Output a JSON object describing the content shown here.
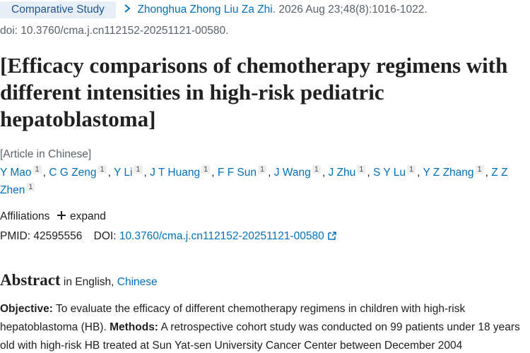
{
  "header": {
    "badge": "Comparative Study",
    "journal": "Zhonghua Zhong Liu Za Zhi",
    "citation": ". 2026 Aug 23;48(8):1016-1022.",
    "doi_line": "doi: 10.3760/cma.j.cn112152-20251121-00580."
  },
  "title": "[Efficacy comparisons of chemotherapy regimens with different intensities in high-risk pediatric hepatoblastoma]",
  "language_note": "[Article in Chinese]",
  "authors": [
    {
      "name": "Y Mao",
      "aff": "1",
      "sep": ","
    },
    {
      "name": "C G Zeng",
      "aff": "1",
      "sep": ","
    },
    {
      "name": "Y Li",
      "aff": "1",
      "sep": ","
    },
    {
      "name": "J T Huang",
      "aff": "1",
      "sep": ","
    },
    {
      "name": "F F Sun",
      "aff": "1",
      "sep": ","
    },
    {
      "name": "J Wang",
      "aff": "1",
      "sep": ","
    },
    {
      "name": "J Zhu",
      "aff": "1",
      "sep": ","
    },
    {
      "name": "S Y Lu",
      "aff": "1",
      "sep": ","
    },
    {
      "name": "Y Z Zhang",
      "aff": "1",
      "sep": ","
    },
    {
      "name": "Z Z Zhen",
      "aff": "1"
    }
  ],
  "affiliations": {
    "label": "Affiliations",
    "expand": "expand"
  },
  "ids": {
    "pmid_label": "PMID:",
    "pmid": "42595556",
    "doi_label": "DOI:",
    "doi": "10.3760/cma.j.cn112152-20251121-00580"
  },
  "abstract": {
    "heading": "Abstract",
    "in": "in",
    "english": "English,",
    "chinese": "Chinese",
    "sections": [
      {
        "label": "Objective:",
        "text": "To evaluate the efficacy of different chemotherapy regimens in children with high-risk hepatoblastoma (HB)."
      },
      {
        "label": "Methods:",
        "text": "A retrospective cohort study was conducted on 99 patients under 18 years old with high-risk HB treated at Sun Yat-sen University Cancer Center between December 2004"
      }
    ]
  }
}
